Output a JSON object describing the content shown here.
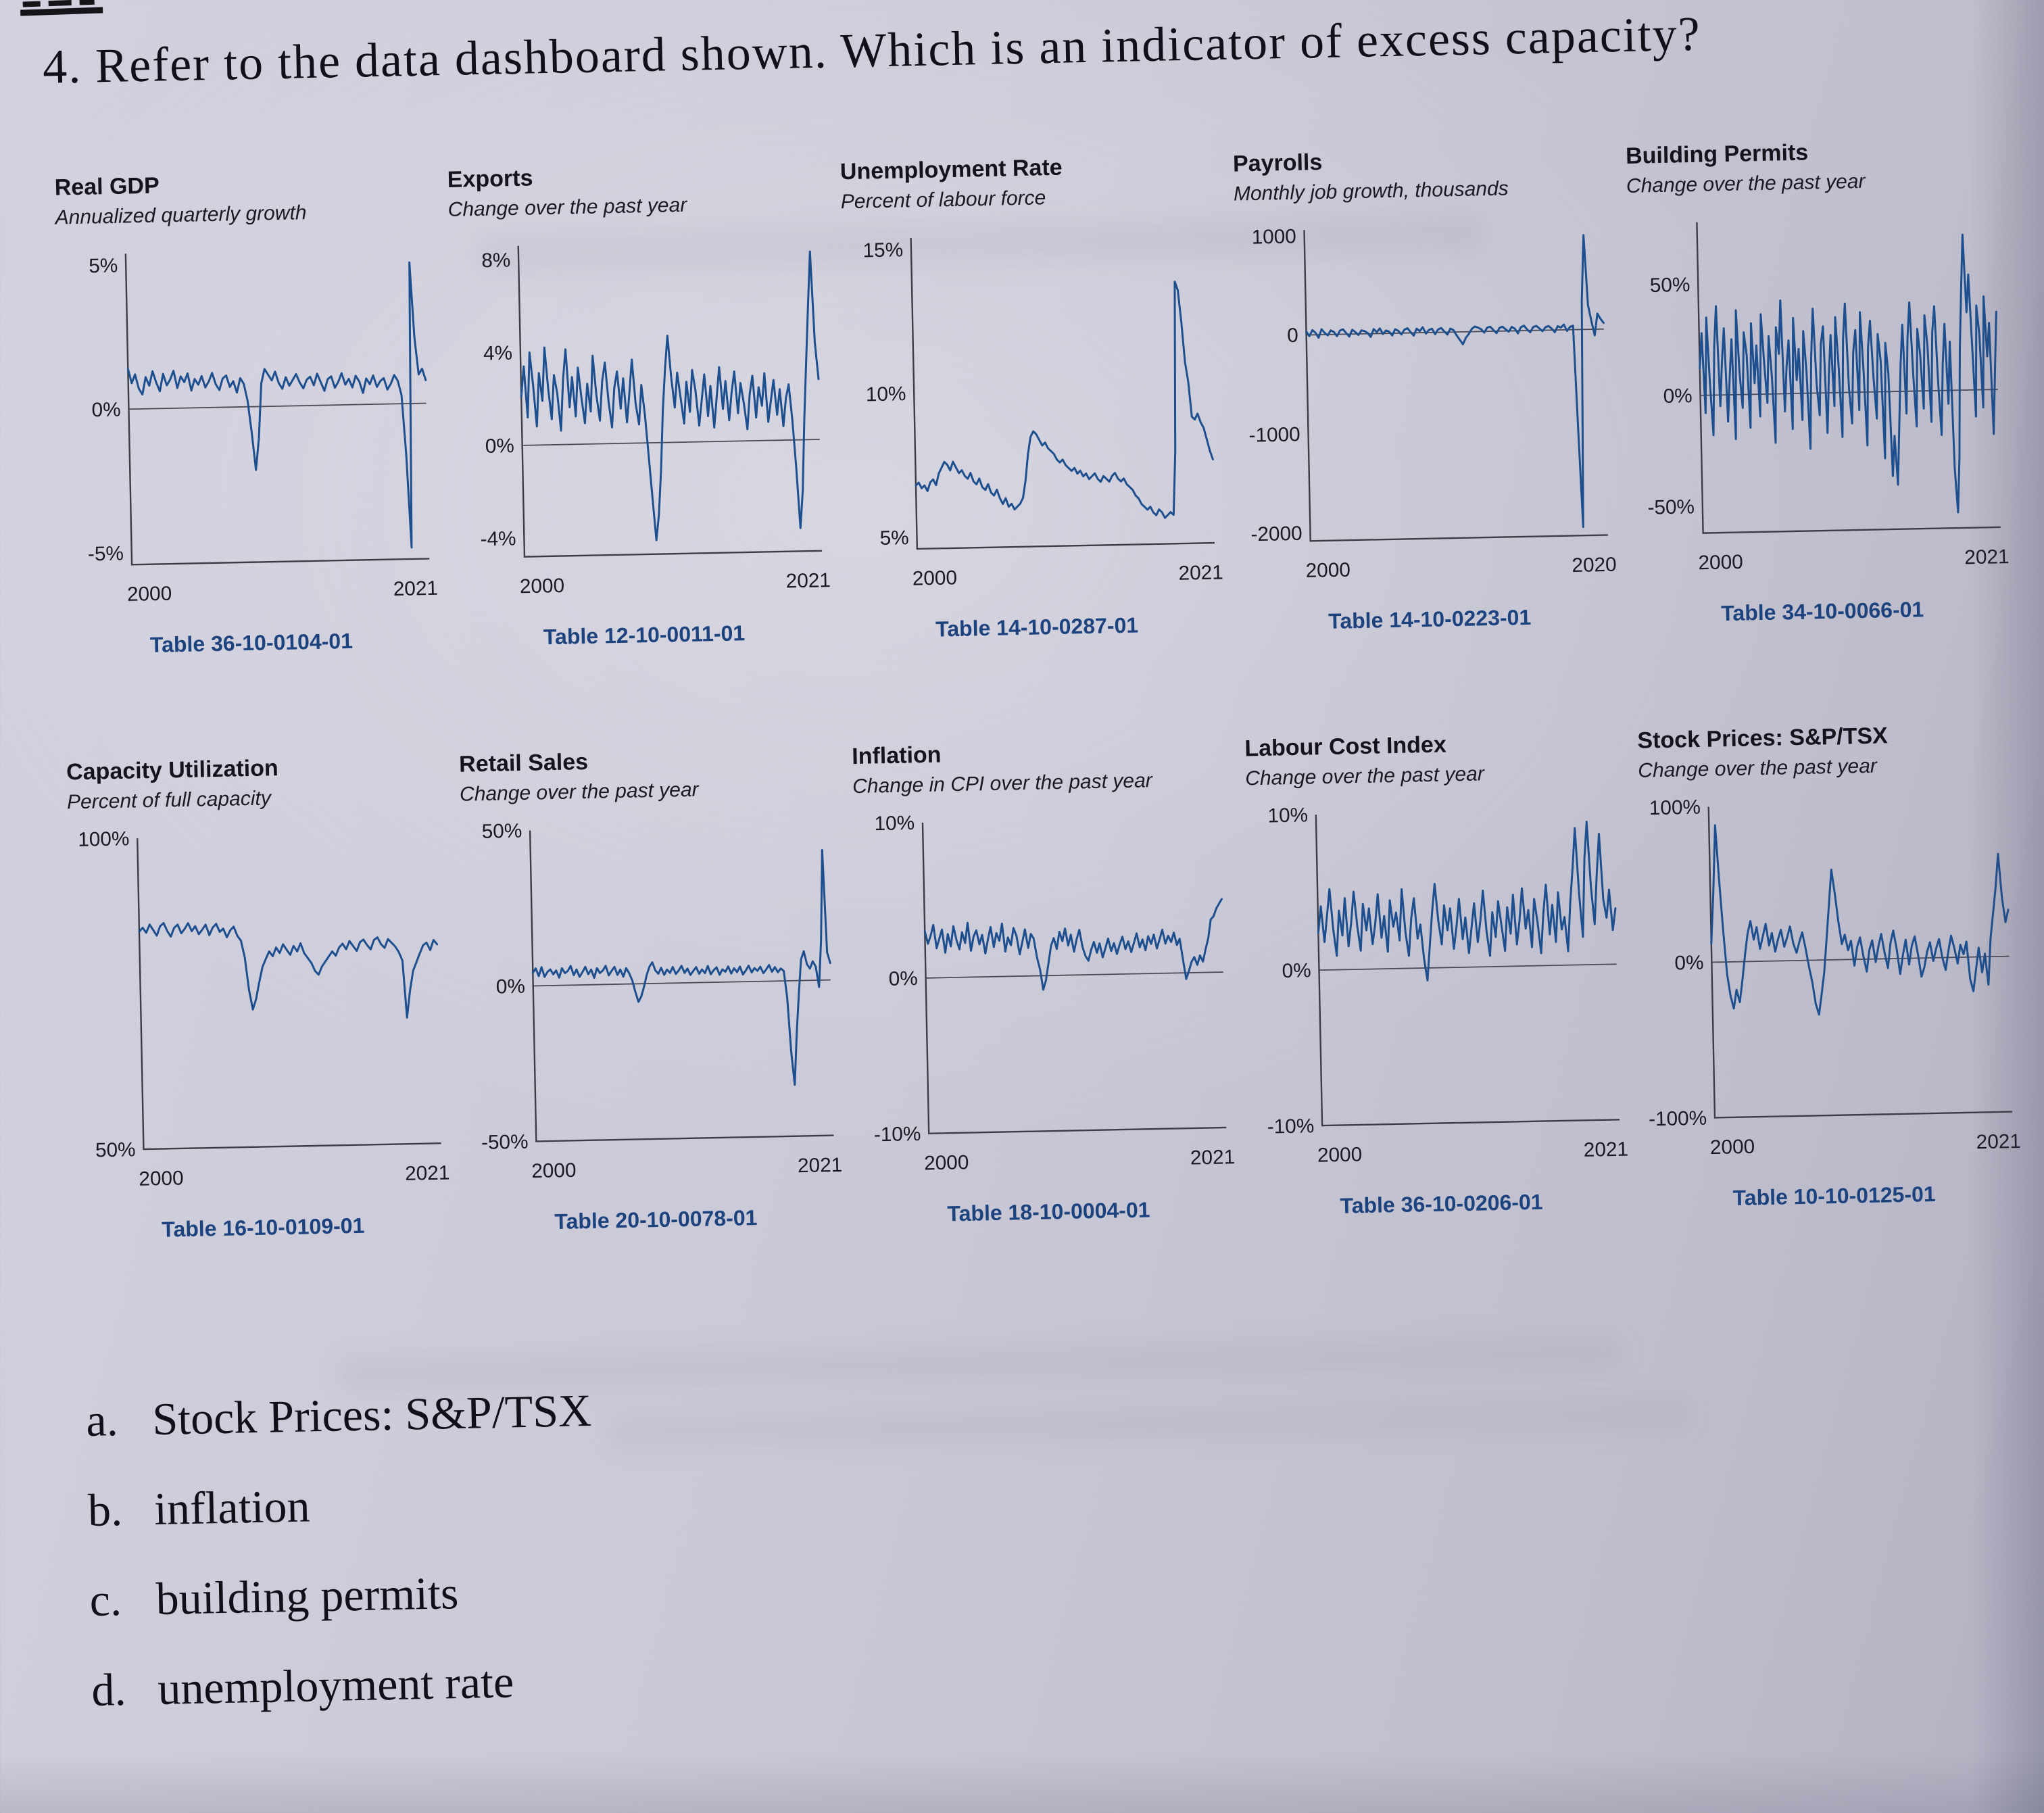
{
  "page": {
    "question_number": "4.",
    "question_text": "Refer to the data dashboard shown. Which is an indicator of excess capacity?",
    "answers": [
      {
        "letter": "a.",
        "text": "Stock Prices: S&P/TSX"
      },
      {
        "letter": "b.",
        "text": "inflation"
      },
      {
        "letter": "c.",
        "text": "building permits"
      },
      {
        "letter": "d.",
        "text": "unemployment rate"
      }
    ]
  },
  "colors": {
    "paper": "#c9c8d6",
    "ink": "#14141d",
    "line": "#1d4f8e",
    "axis": "#3c3c46",
    "caption_blue": "#1d437f"
  },
  "chart_data": [
    {
      "type": "line",
      "title": "Real GDP",
      "subtitle": "Annualized quarterly growth",
      "table": "Table 36-10-0104-01",
      "x_start": "2000",
      "x_end": "2021",
      "yticks": [
        {
          "v": 5,
          "label": "5%"
        },
        {
          "v": 0,
          "label": "0%"
        },
        {
          "v": -5,
          "label": "-5%"
        }
      ],
      "ymin": -5.4,
      "ymax": 5.4,
      "baseline": 0,
      "values": [
        1.4,
        0.9,
        1.2,
        0.7,
        0.5,
        1.1,
        0.8,
        1.3,
        0.9,
        0.6,
        1.2,
        0.8,
        1.0,
        1.3,
        0.7,
        1.1,
        0.9,
        1.2,
        0.6,
        1.0,
        0.8,
        1.1,
        0.7,
        0.9,
        1.2,
        0.8,
        0.6,
        1.0,
        1.1,
        0.7,
        0.9,
        0.5,
        1.0,
        0.8,
        0.2,
        -0.9,
        -2.2,
        -1.1,
        0.8,
        1.3,
        1.1,
        0.9,
        1.2,
        0.8,
        0.6,
        1.0,
        0.7,
        0.9,
        1.1,
        0.8,
        0.6,
        0.9,
        1.0,
        0.7,
        1.1,
        0.8,
        0.5,
        0.9,
        1.0,
        0.6,
        0.8,
        1.1,
        0.7,
        0.9,
        0.6,
        1.0,
        0.8,
        0.4,
        0.9,
        0.7,
        1.0,
        0.6,
        0.8,
        0.9,
        0.5,
        0.7,
        1.0,
        0.8,
        0.3,
        -1.8,
        -5.0,
        4.9,
        2.3,
        1.0,
        1.2,
        0.8
      ]
    },
    {
      "type": "line",
      "title": "Exports",
      "subtitle": "Change over the past year",
      "table": "Table 12-10-0011-01",
      "x_start": "2000",
      "x_end": "2021",
      "yticks": [
        {
          "v": 8,
          "label": "8%"
        },
        {
          "v": 4,
          "label": "4%"
        },
        {
          "v": 0,
          "label": "0%"
        },
        {
          "v": -4,
          "label": "-4%"
        }
      ],
      "ymin": -4.8,
      "ymax": 8.6,
      "baseline": 0,
      "values": [
        2.1,
        3.4,
        1.2,
        4.0,
        2.6,
        0.8,
        3.1,
        1.9,
        4.2,
        2.4,
        1.1,
        3.0,
        2.2,
        0.6,
        2.8,
        4.1,
        1.6,
        2.9,
        1.2,
        3.3,
        2.0,
        0.9,
        2.6,
        1.4,
        3.8,
        2.1,
        1.0,
        2.7,
        3.5,
        1.8,
        0.7,
        2.4,
        3.1,
        1.5,
        2.8,
        0.9,
        2.2,
        3.6,
        1.7,
        0.8,
        2.5,
        1.2,
        -0.6,
        -2.4,
        -4.2,
        -3.1,
        -1.2,
        1.4,
        3.2,
        4.6,
        2.8,
        1.5,
        3.0,
        1.9,
        0.8,
        2.6,
        1.3,
        3.1,
        2.2,
        0.7,
        1.8,
        2.9,
        1.1,
        2.4,
        0.6,
        1.9,
        3.2,
        1.4,
        2.6,
        0.9,
        2.1,
        3.0,
        1.2,
        2.5,
        1.6,
        0.5,
        2.0,
        2.8,
        1.0,
        2.3,
        1.5,
        2.9,
        0.8,
        1.7,
        2.6,
        1.1,
        2.2,
        0.6,
        1.8,
        2.4,
        0.9,
        -1.2,
        -3.8,
        -2.2,
        0.9,
        3.4,
        5.8,
        8.1,
        4.2,
        2.6
      ]
    },
    {
      "type": "line",
      "title": "Unemployment Rate",
      "subtitle": "Percent of labour force",
      "table": "Table 14-10-0287-01",
      "x_start": "2000",
      "x_end": "2021",
      "yticks": [
        {
          "v": 15,
          "label": "15%"
        },
        {
          "v": 10,
          "label": "10%"
        },
        {
          "v": 5,
          "label": "5%"
        }
      ],
      "ymin": 4.6,
      "ymax": 15.4,
      "baseline": null,
      "values": [
        6.8,
        6.9,
        6.7,
        6.8,
        6.6,
        6.9,
        7.0,
        6.8,
        7.2,
        7.4,
        7.6,
        7.5,
        7.3,
        7.6,
        7.4,
        7.2,
        7.3,
        7.1,
        7.0,
        7.2,
        6.9,
        6.8,
        7.0,
        6.7,
        6.6,
        6.8,
        6.5,
        6.4,
        6.6,
        6.3,
        6.1,
        6.3,
        6.0,
        6.1,
        5.9,
        6.0,
        6.1,
        6.3,
        6.9,
        7.8,
        8.4,
        8.6,
        8.5,
        8.3,
        8.1,
        8.2,
        8.0,
        7.9,
        7.8,
        7.6,
        7.5,
        7.6,
        7.4,
        7.3,
        7.2,
        7.3,
        7.1,
        7.2,
        7.0,
        7.1,
        6.9,
        7.0,
        7.1,
        6.9,
        6.8,
        7.0,
        6.9,
        6.8,
        7.0,
        7.1,
        6.9,
        6.8,
        6.9,
        6.7,
        6.6,
        6.5,
        6.3,
        6.2,
        6.0,
        5.9,
        5.8,
        5.9,
        5.7,
        5.6,
        5.8,
        5.7,
        5.5,
        5.6,
        5.7,
        5.6,
        7.8,
        13.7,
        13.4,
        12.3,
        10.9,
        10.2,
        9.0,
        8.9,
        9.1,
        8.8,
        8.6,
        8.2,
        7.8,
        7.5
      ]
    },
    {
      "type": "line",
      "title": "Payrolls",
      "subtitle": "Monthly job growth, thousands",
      "table": "Table 14-10-0223-01",
      "x_start": "2000",
      "x_end": "2020",
      "yticks": [
        {
          "v": 1000,
          "label": "1000"
        },
        {
          "v": 0,
          "label": "0"
        },
        {
          "v": -1000,
          "label": "-1000"
        },
        {
          "v": -2000,
          "label": "-2000"
        }
      ],
      "ymin": -2080,
      "ymax": 1060,
      "baseline": 0,
      "values": [
        35,
        -12,
        48,
        22,
        -30,
        55,
        18,
        -8,
        42,
        25,
        -18,
        38,
        50,
        12,
        -25,
        44,
        20,
        -10,
        36,
        28,
        8,
        -32,
        46,
        15,
        52,
        -6,
        30,
        18,
        -22,
        40,
        24,
        -14,
        34,
        48,
        10,
        -28,
        42,
        16,
        55,
        -10,
        26,
        38,
        -18,
        30,
        44,
        8,
        -24,
        36,
        20,
        -35,
        -80,
        -125,
        -60,
        -20,
        30,
        52,
        40,
        24,
        -12,
        38,
        46,
        14,
        -20,
        32,
        44,
        18,
        -8,
        40,
        22,
        -26,
        36,
        50,
        12,
        -18,
        34,
        46,
        20,
        -10,
        30,
        42,
        16,
        -22,
        38,
        24,
        54,
        -12,
        28,
        40,
        -1011,
        -1994,
        290,
        953,
        246,
        84,
        -62,
        158,
        104,
        62
      ]
    },
    {
      "type": "line",
      "title": "Building Permits",
      "subtitle": "Change over the past year",
      "table": "Table 34-10-0066-01",
      "x_start": "2000",
      "x_end": "2021",
      "yticks": [
        {
          "v": 50,
          "label": "50%"
        },
        {
          "v": 0,
          "label": "0%"
        },
        {
          "v": -50,
          "label": "-50%"
        }
      ],
      "ymin": -62,
      "ymax": 78,
      "baseline": 0,
      "values": [
        12,
        28,
        -8,
        35,
        5,
        -18,
        22,
        40,
        -5,
        15,
        30,
        -12,
        8,
        25,
        -20,
        38,
        10,
        -6,
        28,
        18,
        -15,
        32,
        5,
        22,
        -10,
        36,
        14,
        -4,
        26,
        8,
        -22,
        30,
        18,
        42,
        -8,
        12,
        24,
        -16,
        34,
        6,
        20,
        -12,
        28,
        10,
        -25,
        16,
        38,
        4,
        -10,
        22,
        30,
        -18,
        8,
        26,
        -6,
        34,
        12,
        -20,
        24,
        40,
        2,
        -14,
        18,
        28,
        -8,
        36,
        10,
        -24,
        20,
        32,
        6,
        -12,
        26,
        14,
        -30,
        22,
        8,
        -38,
        -20,
        -42,
        -15,
        12,
        30,
        -10,
        24,
        40,
        8,
        -16,
        28,
        16,
        -8,
        34,
        20,
        -14,
        26,
        38,
        4,
        -20,
        12,
        30,
        -6,
        22,
        -35,
        -55,
        -30,
        18,
        45,
        70,
        35,
        52,
        20,
        -12,
        38,
        25,
        -8,
        42,
        15,
        30,
        -20,
        8,
        35
      ]
    },
    {
      "type": "line",
      "title": "Capacity Utilization",
      "subtitle": "Percent of full capacity",
      "table": "Table 16-10-0109-01",
      "x_start": "2000",
      "x_end": "2021",
      "yticks": [
        {
          "v": 100,
          "label": "100%"
        },
        {
          "v": 50,
          "label": "50%"
        }
      ],
      "ymin": 50,
      "ymax": 100,
      "baseline": null,
      "values": [
        85,
        85.6,
        84.8,
        86.1,
        85.2,
        84.3,
        85.8,
        86.3,
        85.0,
        84.1,
        85.5,
        86.0,
        84.6,
        85.3,
        86.2,
        84.9,
        85.7,
        84.4,
        85.1,
        85.9,
        84.2,
        85.4,
        86.0,
        84.7,
        85.2,
        83.8,
        84.9,
        85.5,
        84.0,
        83.2,
        80.5,
        75.4,
        72.1,
        73.8,
        76.5,
        78.9,
        80.2,
        81.4,
        80.6,
        82.0,
        81.1,
        82.5,
        81.6,
        80.8,
        82.2,
        81.3,
        82.6,
        81.0,
        80.2,
        79.4,
        78.1,
        77.5,
        78.8,
        79.6,
        80.4,
        81.2,
        80.5,
        81.8,
        82.4,
        81.5,
        82.8,
        82.0,
        81.2,
        82.6,
        83.0,
        82.1,
        81.4,
        82.9,
        83.3,
        82.2,
        81.6,
        83.0,
        82.4,
        81.8,
        80.9,
        79.5,
        70.3,
        74.6,
        77.8,
        79.2,
        80.6,
        81.9,
        82.3,
        81.1,
        82.7,
        82.0
      ]
    },
    {
      "type": "line",
      "title": "Retail Sales",
      "subtitle": "Change over the past year",
      "table": "Table 20-10-0078-01",
      "x_start": "2000",
      "x_end": "2021",
      "yticks": [
        {
          "v": 50,
          "label": "50%"
        },
        {
          "v": 0,
          "label": "0%"
        },
        {
          "v": -50,
          "label": "-50%"
        }
      ],
      "ymin": -50,
      "ymax": 50,
      "baseline": 0,
      "values": [
        4.2,
        5.6,
        3.1,
        6.0,
        2.8,
        4.4,
        5.2,
        3.6,
        4.8,
        2.5,
        5.5,
        3.9,
        4.6,
        6.2,
        3.2,
        5.0,
        2.6,
        4.1,
        5.8,
        3.4,
        4.9,
        2.2,
        5.3,
        3.7,
        4.5,
        6.0,
        2.9,
        4.3,
        5.6,
        3.0,
        4.7,
        2.4,
        5.1,
        3.5,
        1.2,
        -2.6,
        -5.8,
        -4.1,
        -1.0,
        2.8,
        5.4,
        6.8,
        4.2,
        3.1,
        5.0,
        2.7,
        4.4,
        3.3,
        5.2,
        2.9,
        4.0,
        5.5,
        3.2,
        4.6,
        2.5,
        3.8,
        5.0,
        2.8,
        4.2,
        3.0,
        5.3,
        2.6,
        3.9,
        4.8,
        2.4,
        4.1,
        3.3,
        5.0,
        2.7,
        4.4,
        3.1,
        4.9,
        2.3,
        3.6,
        5.1,
        2.9,
        4.3,
        3.4,
        4.7,
        2.6,
        3.8,
        5.2,
        3.0,
        4.5,
        2.8,
        4.0,
        3.2,
        -5.4,
        -22.8,
        -33.5,
        -17.2,
        -4.6,
        6.8,
        9.4,
        5.2,
        3.8,
        6.1,
        4.4,
        -2.2,
        12.6,
        41.8,
        8.9,
        5.4
      ]
    },
    {
      "type": "line",
      "title": "Inflation",
      "subtitle": "Change in CPI over the past year",
      "table": "Table 18-10-0004-01",
      "x_start": "2000",
      "x_end": "2021",
      "yticks": [
        {
          "v": 10,
          "label": "10%"
        },
        {
          "v": 0,
          "label": "0%"
        },
        {
          "v": -10,
          "label": "-10%"
        }
      ],
      "ymin": -10,
      "ymax": 10,
      "baseline": 0,
      "values": [
        3.0,
        2.2,
        2.7,
        3.4,
        1.9,
        2.5,
        3.1,
        1.6,
        2.8,
        2.0,
        3.3,
        2.4,
        1.8,
        2.9,
        2.2,
        3.5,
        1.7,
        2.6,
        3.0,
        2.1,
        2.7,
        1.5,
        2.4,
        3.2,
        1.9,
        2.8,
        2.3,
        3.4,
        1.6,
        2.5,
        2.0,
        3.1,
        2.6,
        1.4,
        2.2,
        3.0,
        1.8,
        2.7,
        2.4,
        1.2,
        0.4,
        -0.9,
        -0.3,
        0.8,
        1.9,
        2.4,
        1.7,
        2.8,
        2.2,
        3.0,
        1.9,
        2.6,
        1.5,
        2.3,
        2.9,
        1.8,
        1.2,
        0.9,
        1.6,
        2.1,
        1.4,
        2.0,
        1.1,
        1.7,
        2.3,
        1.5,
        2.0,
        1.3,
        1.9,
        2.4,
        1.6,
        2.1,
        1.4,
        2.0,
        2.6,
        1.7,
        2.2,
        1.5,
        2.4,
        1.9,
        2.5,
        1.6,
        2.2,
        2.8,
        1.9,
        2.4,
        2.0,
        2.6,
        1.8,
        2.2,
        0.9,
        -0.4,
        0.1,
        0.7,
        1.0,
        0.5,
        1.1,
        0.7,
        1.5,
        2.2,
        3.4,
        3.6,
        4.1,
        4.4,
        4.7
      ]
    },
    {
      "type": "line",
      "title": "Labour Cost Index",
      "subtitle": "Change over the past year",
      "table": "Table 36-10-0206-01",
      "x_start": "2000",
      "x_end": "2021",
      "yticks": [
        {
          "v": 10,
          "label": "10%"
        },
        {
          "v": 0,
          "label": "0%"
        },
        {
          "v": -10,
          "label": "-10%"
        }
      ],
      "ymin": -10,
      "ymax": 10,
      "baseline": 0,
      "values": [
        2.4,
        4.1,
        1.8,
        3.5,
        5.2,
        2.6,
        0.9,
        3.8,
        2.2,
        4.6,
        1.5,
        3.0,
        5.0,
        2.8,
        1.2,
        4.2,
        2.5,
        3.9,
        1.6,
        2.9,
        4.8,
        2.0,
        3.4,
        1.1,
        4.4,
        2.7,
        3.6,
        1.8,
        5.1,
        2.3,
        0.8,
        3.2,
        4.5,
        1.9,
        2.8,
        0.6,
        -0.8,
        1.4,
        3.6,
        5.4,
        3.0,
        1.5,
        4.0,
        2.4,
        3.8,
        1.2,
        2.6,
        4.4,
        1.8,
        3.2,
        0.9,
        2.5,
        4.1,
        1.6,
        3.0,
        4.9,
        2.2,
        0.7,
        3.5,
        1.9,
        4.2,
        2.6,
        1.0,
        3.8,
        2.1,
        4.6,
        1.4,
        2.9,
        5.0,
        2.4,
        3.6,
        1.2,
        4.3,
        2.8,
        0.8,
        3.4,
        5.2,
        2.0,
        3.9,
        1.5,
        4.7,
        2.3,
        3.1,
        0.9,
        4.0,
        6.2,
        8.8,
        4.6,
        1.8,
        6.8,
        9.2,
        5.0,
        2.6,
        5.8,
        8.4,
        4.2,
        3.0,
        4.8,
        2.2,
        3.6
      ]
    },
    {
      "type": "line",
      "title": "Stock Prices: S&P/TSX",
      "subtitle": "Change over the past year",
      "table": "Table 10-10-0125-01",
      "x_start": "2000",
      "x_end": "2021",
      "yticks": [
        {
          "v": 100,
          "label": "100%"
        },
        {
          "v": 0,
          "label": "0%"
        },
        {
          "v": -100,
          "label": "-100%"
        }
      ],
      "ymin": -100,
      "ymax": 100,
      "baseline": 0,
      "values": [
        12,
        45,
        88,
        52,
        20,
        -8,
        -22,
        -30,
        -18,
        -26,
        -12,
        4,
        18,
        26,
        14,
        22,
        8,
        16,
        24,
        10,
        18,
        6,
        14,
        20,
        9,
        15,
        22,
        11,
        5,
        12,
        18,
        8,
        -4,
        -14,
        -28,
        -35,
        -22,
        -8,
        14,
        36,
        58,
        42,
        24,
        10,
        16,
        6,
        12,
        -4,
        8,
        14,
        2,
        -8,
        6,
        12,
        -2,
        8,
        16,
        4,
        -6,
        10,
        18,
        6,
        -10,
        2,
        12,
        -4,
        8,
        14,
        2,
        -12,
        -6,
        4,
        10,
        -2,
        6,
        12,
        0,
        -8,
        4,
        14,
        6,
        -4,
        8,
        2,
        10,
        -14,
        -22,
        -8,
        6,
        -10,
        2,
        -18,
        12,
        28,
        45,
        66,
        38,
        22,
        30
      ]
    }
  ]
}
